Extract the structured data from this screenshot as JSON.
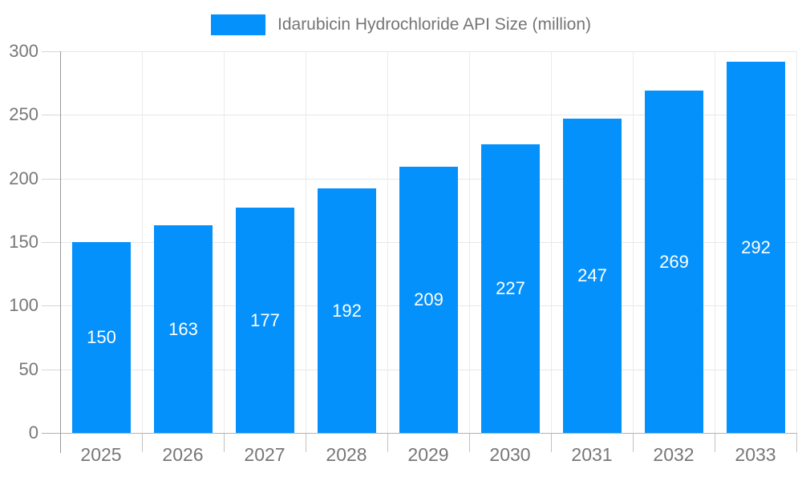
{
  "chart_data": {
    "type": "bar",
    "title": "Idarubicin Hydrochloride API Size (million)",
    "categories": [
      "2025",
      "2026",
      "2027",
      "2028",
      "2029",
      "2030",
      "2031",
      "2032",
      "2033"
    ],
    "values": [
      150,
      163,
      177,
      192,
      209,
      227,
      247,
      269,
      292
    ],
    "xlabel": "",
    "ylabel": "",
    "ylim": [
      0,
      300
    ],
    "ytick_step": 50,
    "ytick_labels": [
      "0",
      "50",
      "100",
      "150",
      "200",
      "250",
      "300"
    ],
    "grid": true,
    "legend_position": "top-center",
    "bar_color": "#0591fb",
    "value_label_color": "#ffffff",
    "axis_label_color": "#777777",
    "legend_text_color": "#757575",
    "grid_color": "#e7e7e7",
    "axis_line_color": "#999999"
  }
}
